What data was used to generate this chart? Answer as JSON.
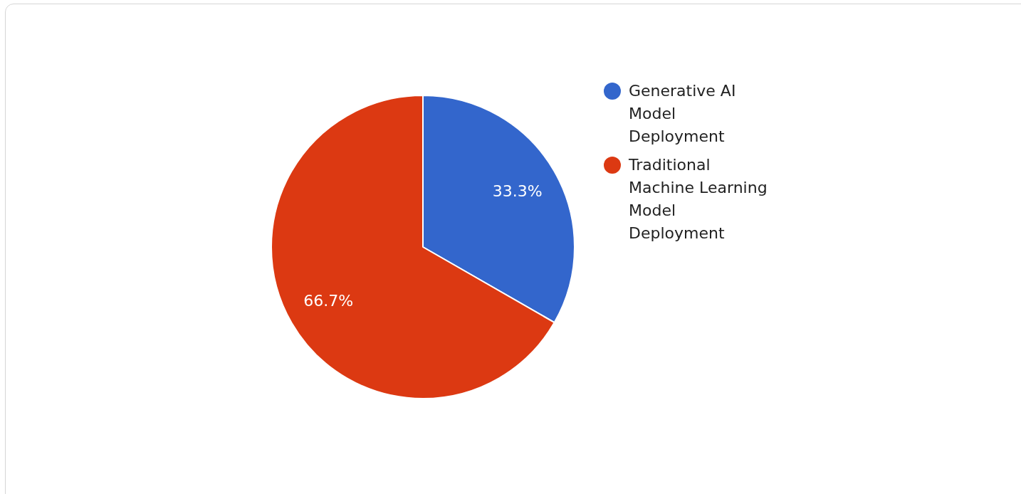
{
  "chart_data": {
    "type": "pie",
    "categories": [
      "Generative AI Model Deployment",
      "Traditional Machine Learning Model Deployment"
    ],
    "values": [
      33.3,
      66.7
    ],
    "colors": [
      "#3366cc",
      "#dc3912"
    ],
    "value_labels": [
      "33.3%",
      "66.7%"
    ],
    "legend": "top right"
  }
}
